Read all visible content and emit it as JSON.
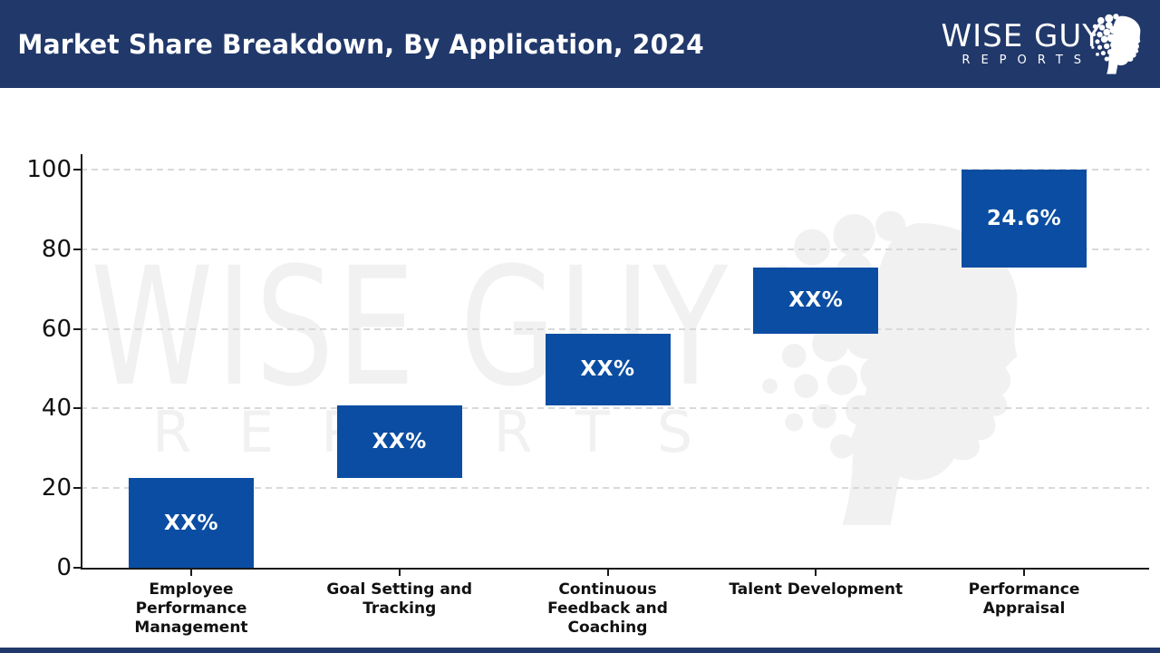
{
  "header": {
    "title": "Market Share Breakdown, By Application, 2024",
    "logo_primary": "WISE GUY",
    "logo_secondary": "REPORTS"
  },
  "watermark": {
    "line1": "WISE GUY",
    "line2": "REPORTS"
  },
  "colors": {
    "header_bg": "#21386a",
    "footer_bg": "#21386a",
    "bar": "#0b4da2",
    "bar_label_text": "#ffffff",
    "axis": "#1a1a1a",
    "grid": "#d9d9d9",
    "watermark": "#f1f1f1",
    "title_text": "#ffffff"
  },
  "chart_data": {
    "type": "bar",
    "subtype": "waterfall",
    "title": "Market Share Breakdown, By Application, 2024",
    "unit": "percent market share",
    "categories": [
      "Employee Performance Management",
      "Goal Setting and Tracking",
      "Continuous Feedback and Coaching",
      "Talent Development",
      "Performance Appraisal"
    ],
    "category_lines": [
      [
        "Employee",
        "Performance",
        "Management"
      ],
      [
        "Goal Setting and",
        "Tracking"
      ],
      [
        "Continuous",
        "Feedback and",
        "Coaching"
      ],
      [
        "Talent Development"
      ],
      [
        "Performance",
        "Appraisal"
      ]
    ],
    "segments": [
      {
        "category": "Employee Performance Management",
        "start": 0,
        "end": 22.5,
        "value": 22.5,
        "label": "XX%"
      },
      {
        "category": "Goal Setting and Tracking",
        "start": 22.5,
        "end": 40.8,
        "value": 18.3,
        "label": "XX%"
      },
      {
        "category": "Continuous Feedback and Coaching",
        "start": 40.8,
        "end": 58.8,
        "value": 18.0,
        "label": "XX%"
      },
      {
        "category": "Talent Development",
        "start": 58.8,
        "end": 75.4,
        "value": 16.6,
        "label": "XX%"
      },
      {
        "category": "Performance Appraisal",
        "start": 75.4,
        "end": 100,
        "value": 24.6,
        "label": "24.6%"
      }
    ],
    "yticks": [
      0,
      20,
      40,
      60,
      80,
      100
    ],
    "ylim": [
      0,
      104
    ],
    "xlabel": "",
    "ylabel": "",
    "grid": "horizontal-dashed",
    "legend": "none",
    "bar_color": "#0b4da2"
  }
}
